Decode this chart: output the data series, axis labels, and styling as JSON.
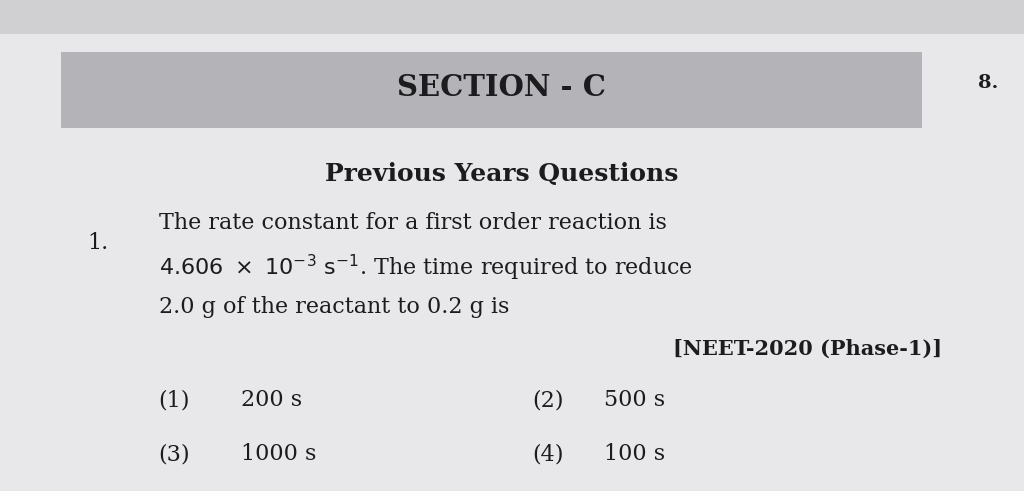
{
  "page_bg": "#e8e8ea",
  "header_bg": "#b4b4b8",
  "section_header": "SECTION - C",
  "subtitle": "Previous Years Questions",
  "question_number": "1.",
  "question_line1": "The rate constant for a first order reaction is",
  "question_line3": "2.0 g of the reactant to 0.2 g is",
  "reference": "[NEET-2020 (Phase-1)]",
  "options": [
    {
      "num": "(1)",
      "text": "200 s"
    },
    {
      "num": "(2)",
      "text": "500 s"
    },
    {
      "num": "(3)",
      "text": "1000 s"
    },
    {
      "num": "(4)",
      "text": "100 s"
    }
  ],
  "page_number": "8.",
  "text_color": "#1c1c1e",
  "header_text_color": "#1c1c1e",
  "top_strip_color": "#d0d0d2",
  "figsize": [
    10.24,
    4.91
  ],
  "dpi": 100
}
